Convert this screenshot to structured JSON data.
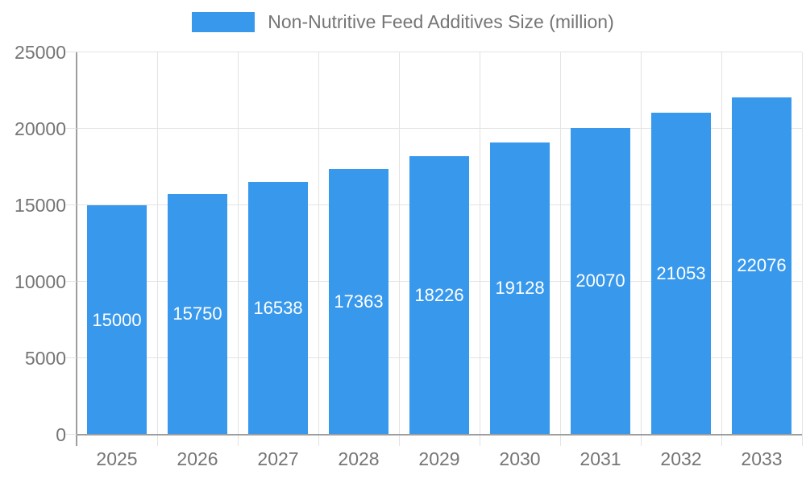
{
  "legend": {
    "label": "Non-Nutritive Feed Additives Size (million)"
  },
  "chart_data": {
    "type": "bar",
    "title": "",
    "series_name": "Non-Nutritive Feed Additives Size (million)",
    "categories": [
      "2025",
      "2026",
      "2027",
      "2028",
      "2029",
      "2030",
      "2031",
      "2032",
      "2033"
    ],
    "values": [
      15000,
      15750,
      16538,
      17363,
      18226,
      19128,
      20070,
      21053,
      22076
    ],
    "xlabel": "",
    "ylabel": "",
    "ylim": [
      0,
      25000
    ],
    "yticks": [
      0,
      5000,
      10000,
      15000,
      20000,
      25000
    ],
    "grid": true,
    "legend_position": "top",
    "bar_labels_visible": true
  },
  "colors": {
    "bar": "#3898ec",
    "bar_label": "#ffffff",
    "axis_line": "#9e9e9e",
    "gridline": "#e3e3e3",
    "text": "#757575",
    "background": "#ffffff"
  }
}
